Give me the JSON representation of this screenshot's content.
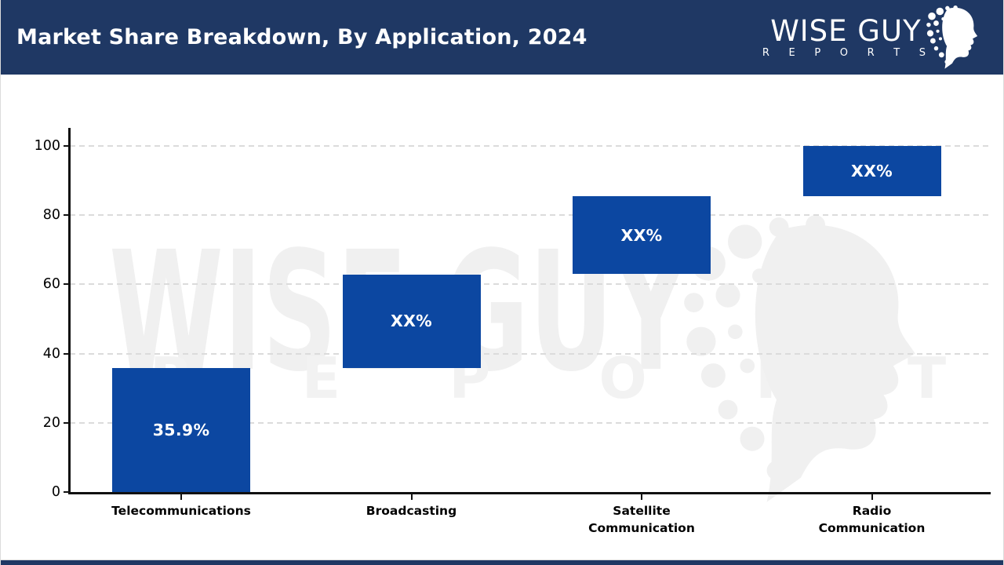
{
  "header": {
    "title": "Market Share Breakdown, By Application, 2024",
    "bg_color": "#1f3864",
    "logo": {
      "line1": "WISE GUY",
      "line2": "REPORTS"
    }
  },
  "watermark": {
    "line1": "WISE GUY",
    "line2": "REPORTS"
  },
  "chart_data": {
    "type": "bar",
    "subtype": "waterfall-segment",
    "title": "Market Share Breakdown, By Application, 2024",
    "categories": [
      "Telecommunications",
      "Broadcasting",
      "Satellite Communication",
      "Radio Communication"
    ],
    "category_lines": [
      [
        "Telecommunications"
      ],
      [
        "Broadcasting"
      ],
      [
        "Satellite",
        "Communication"
      ],
      [
        "Radio",
        "Communication"
      ]
    ],
    "bars": [
      {
        "category": "Telecommunications",
        "start": 0,
        "end": 35.9,
        "label": "35.9%"
      },
      {
        "category": "Broadcasting",
        "start": 35.9,
        "end": 62.9,
        "label": "XX%"
      },
      {
        "category": "Satellite Communication",
        "start": 63.0,
        "end": 85.4,
        "label": "XX%"
      },
      {
        "category": "Radio Communication",
        "start": 85.5,
        "end": 100,
        "label": "XX%"
      }
    ],
    "ylim": [
      0,
      100
    ],
    "yticks": [
      0,
      20,
      40,
      60,
      80,
      100
    ],
    "bar_color": "#0c47a1",
    "grid": "horizontal-dashed",
    "legend": "none"
  },
  "footer": {
    "bg_color": "#1f3864"
  }
}
